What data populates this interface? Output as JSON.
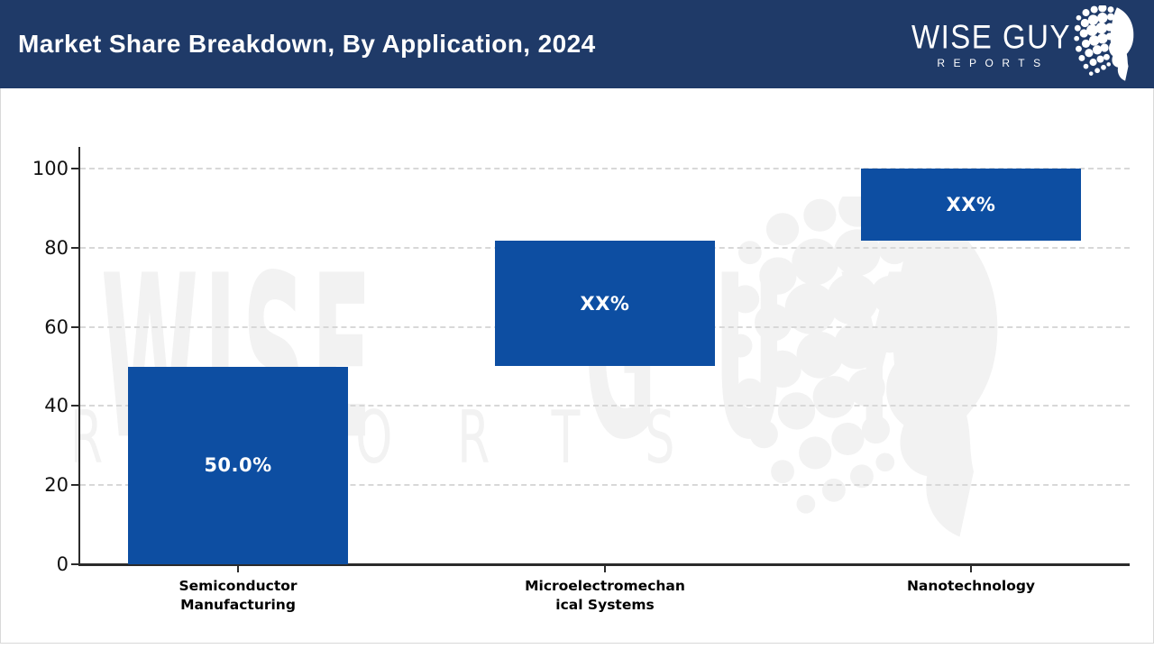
{
  "header": {
    "title": "Market Share Breakdown, By Application, 2024",
    "logo": {
      "wordmark": "WISE GUY",
      "subtitle": "REPORTS"
    },
    "bg_color": "#1f3a68"
  },
  "watermark": {
    "word1": "WISE",
    "word2": "GUY",
    "subtitle": "REPORTS"
  },
  "chart_data": {
    "type": "bar",
    "subtype": "waterfall",
    "title": "Market Share Breakdown, By Application, 2024",
    "xlabel": "",
    "ylabel": "",
    "ylim": [
      0,
      100
    ],
    "yticks": [
      0,
      20,
      40,
      60,
      80,
      100
    ],
    "grid": "horizontal-dashed",
    "legend": "none",
    "bar_color": "#0d4ea2",
    "bars": [
      {
        "category_lines": [
          "Semiconductor",
          "Manufacturing"
        ],
        "start": 0,
        "end": 50,
        "value": 50.0,
        "value_label": "50.0%"
      },
      {
        "category_lines": [
          "Microelectromechan",
          "ical Systems"
        ],
        "start": 50,
        "end": 81.8,
        "value": 31.8,
        "value_label": "XX%"
      },
      {
        "category_lines": [
          "Nanotechnology"
        ],
        "start": 81.8,
        "end": 100,
        "value": 18.2,
        "value_label": "XX%"
      }
    ]
  }
}
